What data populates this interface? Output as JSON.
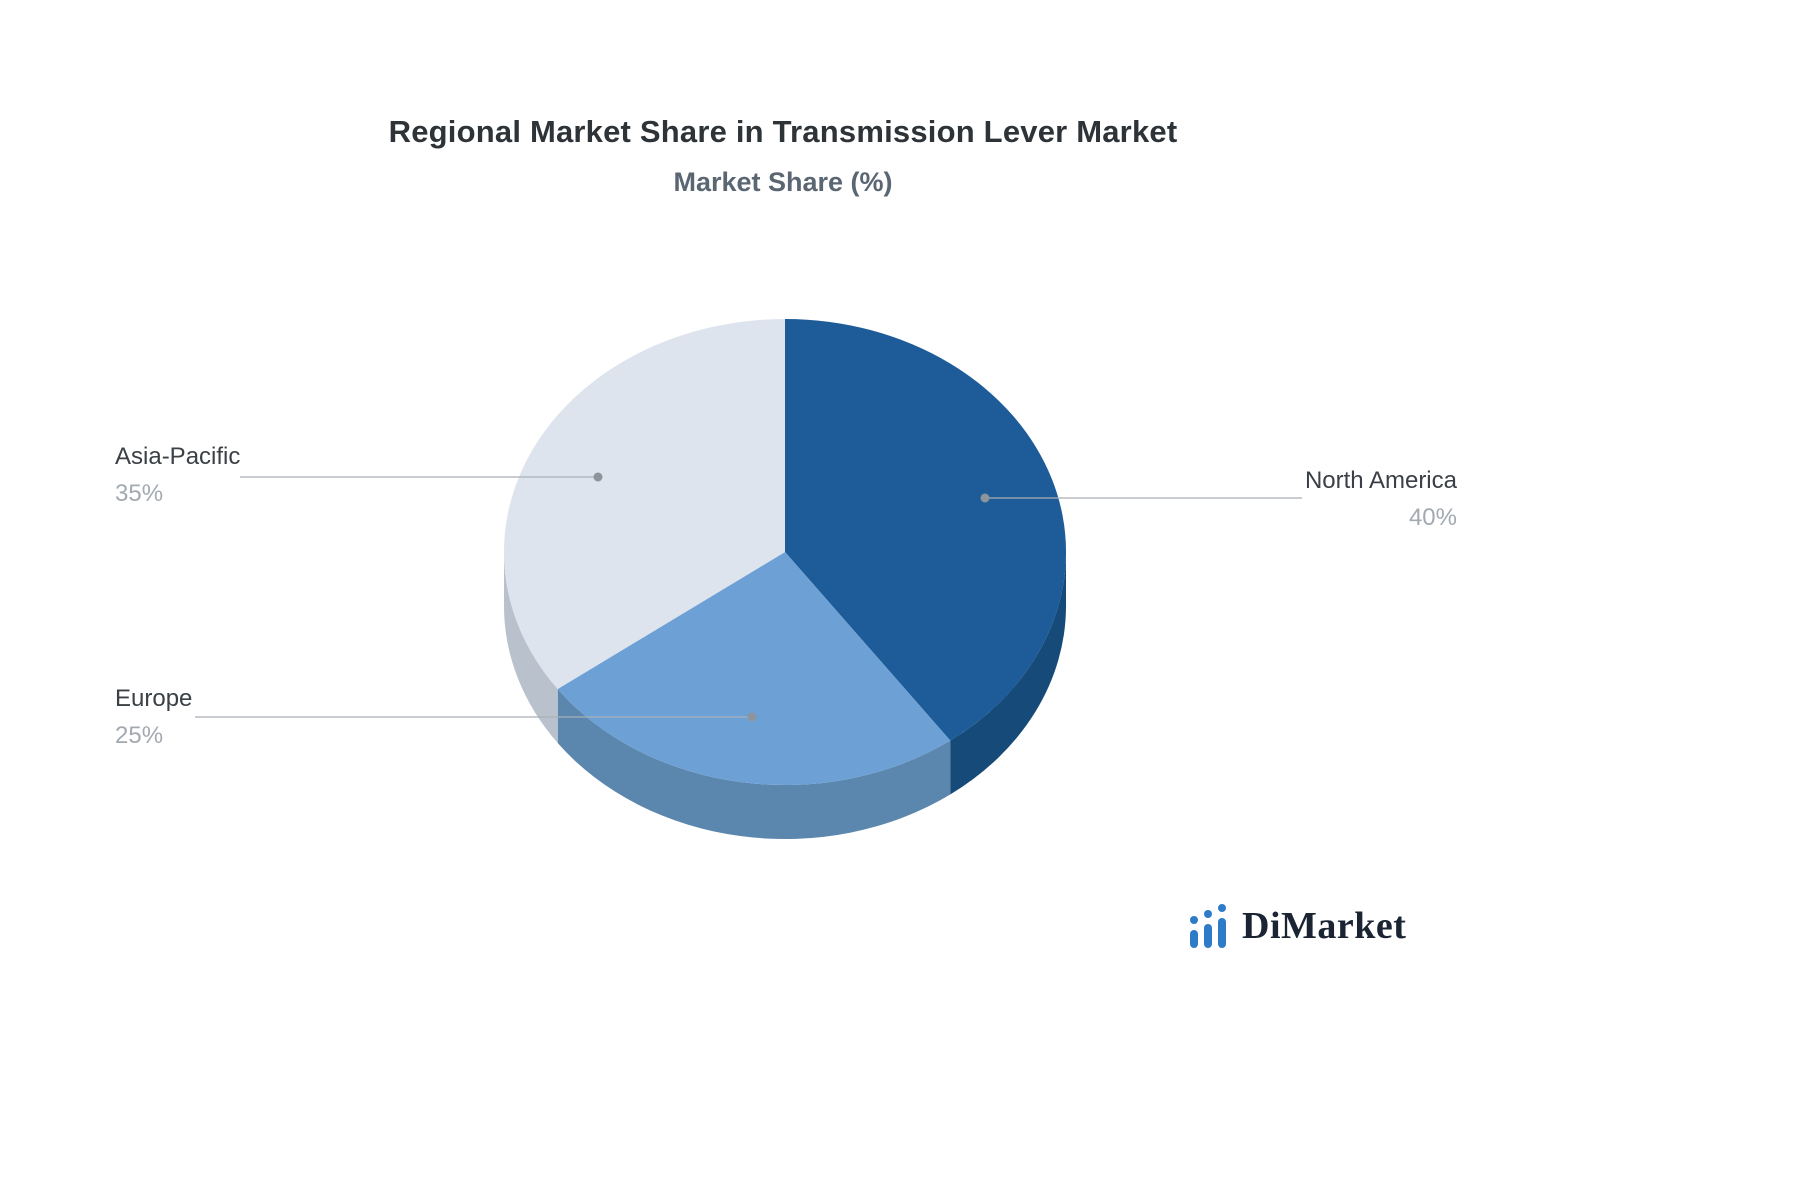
{
  "header": {
    "title": "Regional Market Share in Transmission Lever Market",
    "subtitle": "Market Share (%)"
  },
  "chart_data": {
    "type": "pie",
    "title": "Regional Market Share in Transmission Lever Market",
    "subtitle": "Market Share (%)",
    "unit": "%",
    "style": "3d",
    "start_angle_deg": -90,
    "direction": "clockwise",
    "legend_position": "none",
    "slices": [
      {
        "label": "North America",
        "value": 40,
        "display": "40%",
        "color": "#1E5C99",
        "side_color": "#164A78"
      },
      {
        "label": "Europe",
        "value": 25,
        "display": "25%",
        "color": "#6DA1D5",
        "side_color": "#5B87AE"
      },
      {
        "label": "Asia-Pacific",
        "value": 35,
        "display": "35%",
        "color": "#DEE4EE",
        "side_color": "#B9C1CD"
      }
    ]
  },
  "leader_line_color": "#A9AFB6",
  "leader_dot_color": "#8E949B",
  "logo": {
    "name": "DiMarket",
    "icon": "bar-chart-icon",
    "icon_color": "#2D7BC9",
    "text_color": "#1B2433"
  }
}
